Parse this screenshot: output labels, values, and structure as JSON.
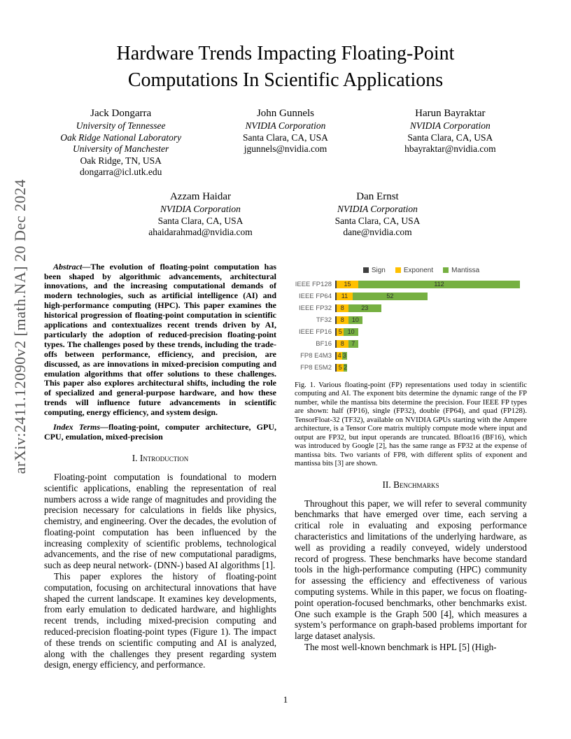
{
  "arxiv_banner": "arXiv:2411.12090v2  [math.NA]  20 Dec 2024",
  "title": {
    "line1": "Hardware Trends Impacting Floating-Point",
    "line2": "Computations In Scientific Applications"
  },
  "authors": [
    {
      "name": "Jack Dongarra",
      "affiliations": [
        "University of Tennessee",
        "Oak Ridge National Laboratory",
        "University of Manchester"
      ],
      "address": "Oak Ridge, TN, USA",
      "email": "dongarra@icl.utk.edu"
    },
    {
      "name": "John Gunnels",
      "affiliations": [
        "NVIDIA Corporation"
      ],
      "address": "Santa Clara, CA, USA",
      "email": "jgunnels@nvidia.com"
    },
    {
      "name": "Harun Bayraktar",
      "affiliations": [
        "NVIDIA Corporation"
      ],
      "address": "Santa Clara, CA, USA",
      "email": "hbayraktar@nvidia.com"
    },
    {
      "name": "Azzam Haidar",
      "affiliations": [
        "NVIDIA Corporation"
      ],
      "address": "Santa Clara, CA, USA",
      "email": "ahaidarahmad@nvidia.com"
    },
    {
      "name": "Dan Ernst",
      "affiliations": [
        "NVIDIA Corporation"
      ],
      "address": "Santa Clara, CA, USA",
      "email": "dane@nvidia.com"
    }
  ],
  "abstract": {
    "label": "Abstract—",
    "text": "The evolution of floating-point computation has been shaped by algorithmic advancements, architectural innovations, and the increasing computational demands of modern technologies, such as artificial intelligence (AI) and high-performance computing (HPC). This paper examines the historical progression of floating-point computation in scientific applications and contextualizes recent trends driven by AI, particularly the adoption of reduced-precision floating-point types. The challenges posed by these trends, including the trade-offs between performance, efficiency, and precision, are discussed, as are innovations in mixed-precision computing and emulation algorithms that offer solutions to these challenges. This paper also explores architectural shifts, including the role of specialized and general-purpose hardware, and how these trends will influence future advancements in scientific computing, energy efficiency, and system design."
  },
  "index_terms": {
    "label": "Index Terms—",
    "text": "floating-point, computer architecture, GPU, CPU, emulation, mixed-precision"
  },
  "sections": [
    {
      "heading": "I. Introduction",
      "paragraphs": [
        "Floating-point computation is foundational to modern scientific applications, enabling the representation of real numbers across a wide range of magnitudes and providing the precision necessary for calculations in fields like physics, chemistry, and engineering. Over the decades, the evolution of floating-point computation has been influenced by the increasing complexity of scientific problems, technological advancements, and the rise of new computational paradigms, such as deep neural network- (DNN-) based AI algorithms [1].",
        "This paper explores the history of floating-point computation, focusing on architectural innovations that have shaped the current landscape. It examines key developments, from early emulation to dedicated hardware, and highlights recent trends, including mixed-precision computing and reduced-precision floating-point types (Figure 1). The impact of these trends on scientific computing and AI is analyzed, along with the challenges they present regarding system design, energy efficiency, and performance."
      ]
    },
    {
      "heading": "II. Benchmarks",
      "paragraphs": [
        "Throughout this paper, we will refer to several community benchmarks that have emerged over time, each serving a critical role in evaluating and exposing performance characteristics and limitations of the underlying hardware, as well as providing a readily conveyed, widely understood record of progress. These benchmarks have become standard tools in the high-performance computing (HPC) community for assessing the efficiency and effectiveness of various computing systems. While in this paper, we focus on floating-point operation-focused benchmarks, other benchmarks exist. One such example is the Graph 500 [4], which measures a system’s performance on graph-based problems important for large dataset analysis.",
        "The most well-known benchmark is HPL [5] (High-"
      ]
    }
  ],
  "figure": {
    "caption": "Fig. 1.   Various floating-point (FP) representations used today in scientific computing and AI. The exponent bits determine the dynamic range of the FP number, while the mantissa bits determine the precision. Four IEEE FP types are shown: half (FP16), single (FP32), double (FP64), and quad (FP128). TensorFloat-32 (TF32), available on NVIDIA GPUs starting with the Ampere architecture, is a Tensor Core matrix multiply compute mode where input and output are FP32, but input operands are truncated. Bfloat16 (BF16), which was introduced by Google [2], has the same range as FP32 at the expense of mantissa bits. Two variants of FP8, with different splits of exponent and mantissa bits [3] are shown."
  },
  "chart_data": {
    "type": "bar",
    "orientation": "horizontal",
    "stacked": true,
    "categories": [
      "IEEE FP128",
      "IEEE FP64",
      "IEEE FP32",
      "TF32",
      "IEEE FP16",
      "BF16",
      "FP8 E4M3",
      "FP8 E5M2"
    ],
    "series": [
      {
        "name": "Sign",
        "color": "#3f3f3f",
        "values": [
          1,
          1,
          1,
          1,
          1,
          1,
          1,
          1
        ],
        "show_value_labels": false
      },
      {
        "name": "Exponent",
        "color": "#ffc000",
        "values": [
          15,
          11,
          8,
          8,
          5,
          8,
          4,
          5
        ],
        "show_value_labels": true
      },
      {
        "name": "Mantissa",
        "color": "#76b041",
        "values": [
          112,
          52,
          23,
          10,
          10,
          7,
          3,
          2
        ],
        "show_value_labels": true
      }
    ],
    "x_max_bits": 128,
    "legend_position": "top",
    "title": "",
    "xlabel": "",
    "ylabel": ""
  },
  "page_number": "1"
}
